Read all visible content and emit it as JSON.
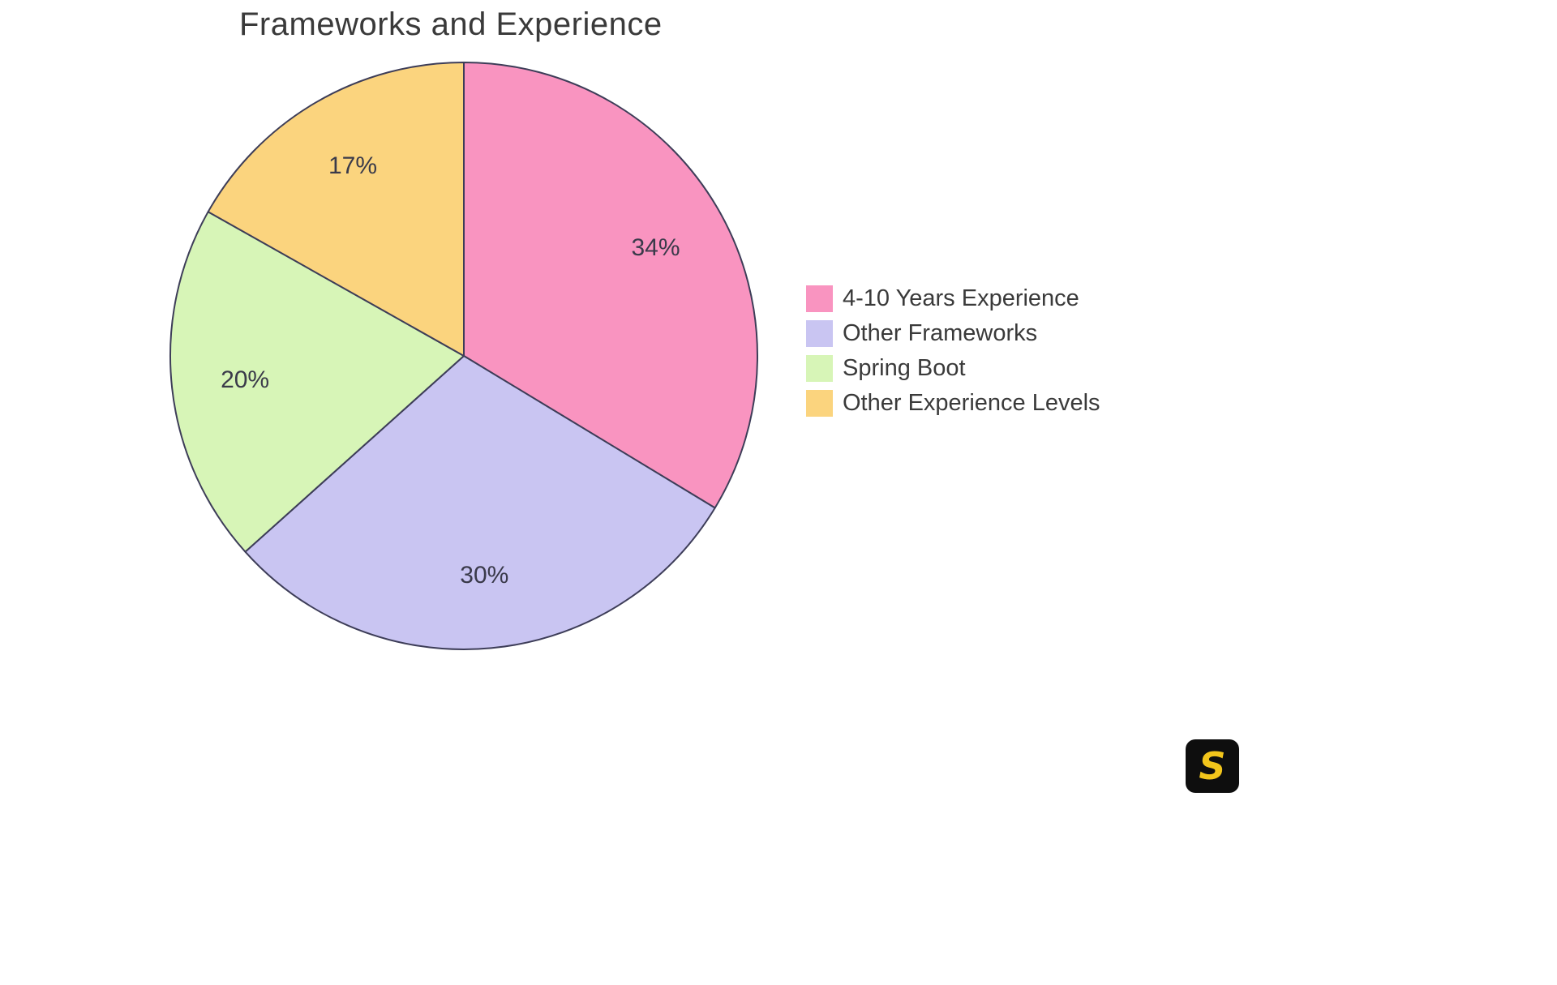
{
  "title": "Frameworks and Experience",
  "chart_data": {
    "type": "pie",
    "title": "Frameworks and Experience",
    "direction": "clockwise",
    "start_angle_deg": 0,
    "legend_position": "right",
    "stroke_color": "#3d3d58",
    "stroke_width": 2,
    "percent_label_color": "#3a3a4a",
    "slices": [
      {
        "label": "4-10 Years Experience",
        "value": 34,
        "percent_label": "34%",
        "color": "#f994c0"
      },
      {
        "label": "Other Frameworks",
        "value": 30,
        "percent_label": "30%",
        "color": "#c9c5f2"
      },
      {
        "label": "Spring Boot",
        "value": 20,
        "percent_label": "20%",
        "color": "#d7f5b7"
      },
      {
        "label": "Other Experience Levels",
        "value": 17,
        "percent_label": "17%",
        "color": "#fbd47e"
      }
    ]
  },
  "logo": {
    "letter": "S",
    "background": "#0e0e0e",
    "color": "#f2c51b"
  }
}
